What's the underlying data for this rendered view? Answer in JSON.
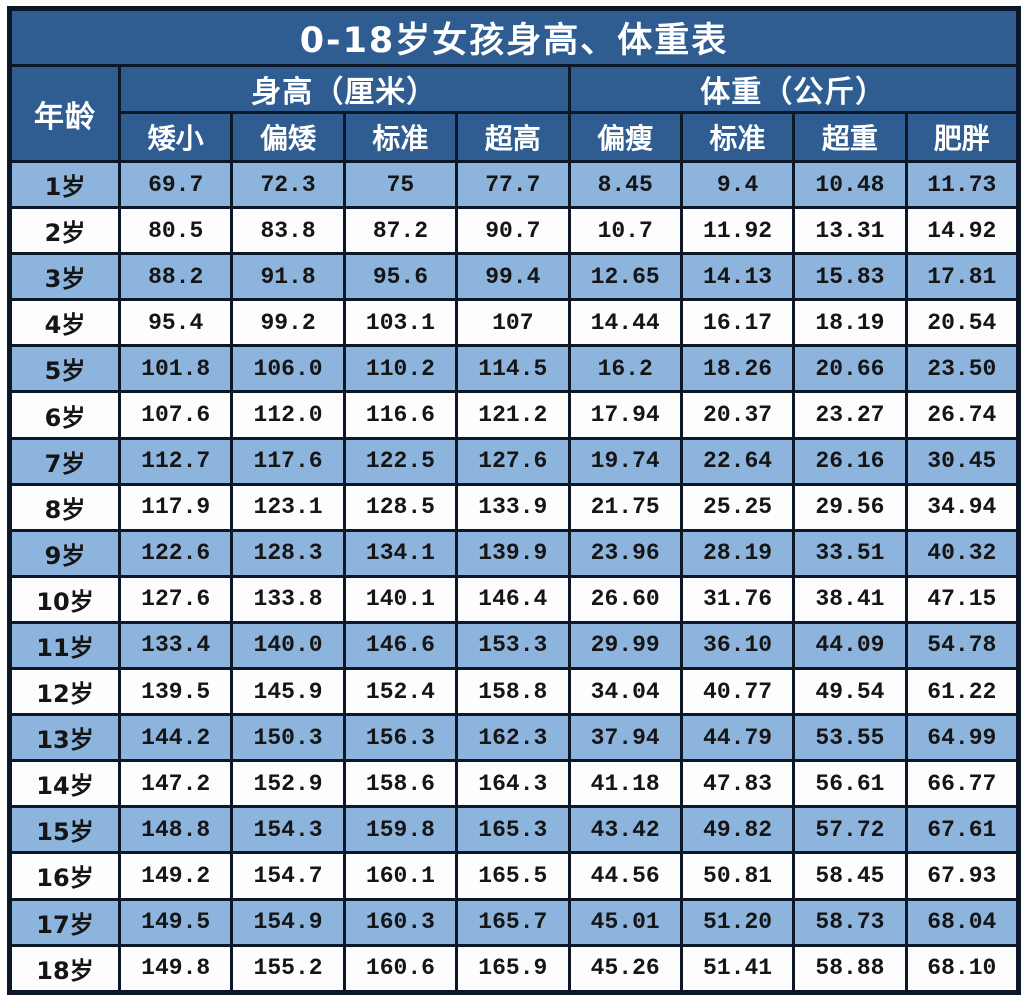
{
  "chart_data": {
    "type": "table",
    "title": "0-18岁女孩身高、体重表",
    "age_header": "年龄",
    "column_groups": [
      {
        "label": "身高（厘米）",
        "columns": [
          "矮小",
          "偏矮",
          "标准",
          "超高"
        ]
      },
      {
        "label": "体重（公斤）",
        "columns": [
          "偏瘦",
          "标准",
          "超重",
          "肥胖"
        ]
      }
    ],
    "rows": [
      {
        "age": "1岁",
        "values": [
          "69.7",
          "72.3",
          "75",
          "77.7",
          "8.45",
          "9.4",
          "10.48",
          "11.73"
        ]
      },
      {
        "age": "2岁",
        "values": [
          "80.5",
          "83.8",
          "87.2",
          "90.7",
          "10.7",
          "11.92",
          "13.31",
          "14.92"
        ]
      },
      {
        "age": "3岁",
        "values": [
          "88.2",
          "91.8",
          "95.6",
          "99.4",
          "12.65",
          "14.13",
          "15.83",
          "17.81"
        ]
      },
      {
        "age": "4岁",
        "values": [
          "95.4",
          "99.2",
          "103.1",
          "107",
          "14.44",
          "16.17",
          "18.19",
          "20.54"
        ]
      },
      {
        "age": "5岁",
        "values": [
          "101.8",
          "106.0",
          "110.2",
          "114.5",
          "16.2",
          "18.26",
          "20.66",
          "23.50"
        ]
      },
      {
        "age": "6岁",
        "values": [
          "107.6",
          "112.0",
          "116.6",
          "121.2",
          "17.94",
          "20.37",
          "23.27",
          "26.74"
        ]
      },
      {
        "age": "7岁",
        "values": [
          "112.7",
          "117.6",
          "122.5",
          "127.6",
          "19.74",
          "22.64",
          "26.16",
          "30.45"
        ]
      },
      {
        "age": "8岁",
        "values": [
          "117.9",
          "123.1",
          "128.5",
          "133.9",
          "21.75",
          "25.25",
          "29.56",
          "34.94"
        ]
      },
      {
        "age": "9岁",
        "values": [
          "122.6",
          "128.3",
          "134.1",
          "139.9",
          "23.96",
          "28.19",
          "33.51",
          "40.32"
        ]
      },
      {
        "age": "10岁",
        "values": [
          "127.6",
          "133.8",
          "140.1",
          "146.4",
          "26.60",
          "31.76",
          "38.41",
          "47.15"
        ]
      },
      {
        "age": "11岁",
        "values": [
          "133.4",
          "140.0",
          "146.6",
          "153.3",
          "29.99",
          "36.10",
          "44.09",
          "54.78"
        ]
      },
      {
        "age": "12岁",
        "values": [
          "139.5",
          "145.9",
          "152.4",
          "158.8",
          "34.04",
          "40.77",
          "49.54",
          "61.22"
        ]
      },
      {
        "age": "13岁",
        "values": [
          "144.2",
          "150.3",
          "156.3",
          "162.3",
          "37.94",
          "44.79",
          "53.55",
          "64.99"
        ]
      },
      {
        "age": "14岁",
        "values": [
          "147.2",
          "152.9",
          "158.6",
          "164.3",
          "41.18",
          "47.83",
          "56.61",
          "66.77"
        ]
      },
      {
        "age": "15岁",
        "values": [
          "148.8",
          "154.3",
          "159.8",
          "165.3",
          "43.42",
          "49.82",
          "57.72",
          "67.61"
        ]
      },
      {
        "age": "16岁",
        "values": [
          "149.2",
          "154.7",
          "160.1",
          "165.5",
          "44.56",
          "50.81",
          "58.45",
          "67.93"
        ]
      },
      {
        "age": "17岁",
        "values": [
          "149.5",
          "154.9",
          "160.3",
          "165.7",
          "45.01",
          "51.20",
          "58.73",
          "68.04"
        ]
      },
      {
        "age": "18岁",
        "values": [
          "149.8",
          "155.2",
          "160.6",
          "165.9",
          "45.26",
          "51.41",
          "58.88",
          "68.10"
        ]
      }
    ]
  },
  "colors": {
    "header_bg": "#2f5d92",
    "row_alt_bg": "#8db4dc",
    "row_bg": "#fdfdfe",
    "border": "#0c1727",
    "header_text": "#ffffff",
    "cell_text": "#151515"
  }
}
